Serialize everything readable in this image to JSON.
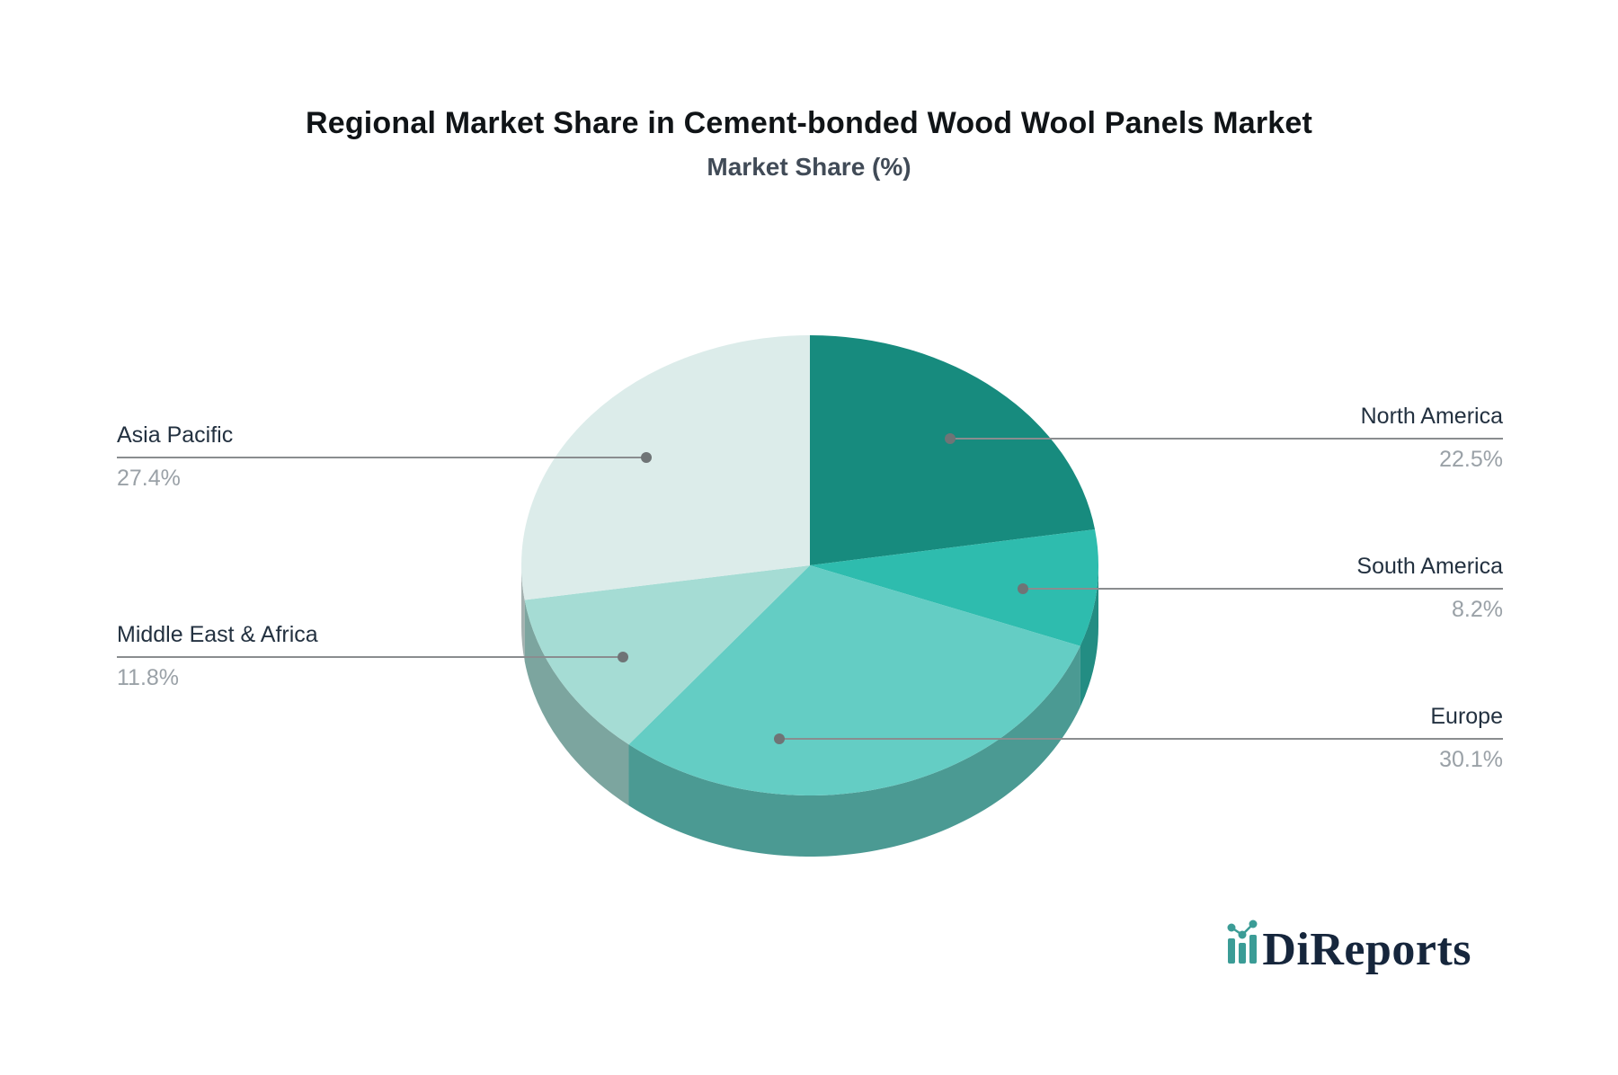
{
  "header": {
    "title": "Regional Market Share in Cement-bonded Wood Wool Panels Market",
    "subtitle": "Market Share (%)"
  },
  "chart_data": {
    "type": "pie",
    "title": "Regional Market Share in Cement-bonded Wood Wool Panels Market",
    "subtitle": "Market Share (%)",
    "unit": "%",
    "effect": "3d",
    "start_angle_deg": 0,
    "direction": "clockwise",
    "legend_position": "callout-labels",
    "slices": [
      {
        "label": "North America",
        "value": 22.5,
        "value_label": "22.5%",
        "color": "#178b7e",
        "label_side": "right"
      },
      {
        "label": "South America",
        "value": 8.2,
        "value_label": "8.2%",
        "color": "#2ebcae",
        "label_side": "right"
      },
      {
        "label": "Europe",
        "value": 30.1,
        "value_label": "30.1%",
        "color": "#64cdc4",
        "label_side": "right"
      },
      {
        "label": "Middle East & Africa",
        "value": 11.8,
        "value_label": "11.8%",
        "color": "#a5dcd4",
        "label_side": "left"
      },
      {
        "label": "Asia Pacific",
        "value": 27.4,
        "value_label": "27.4%",
        "color": "#dcecea",
        "label_side": "left"
      }
    ]
  },
  "branding": {
    "logo_text": "DiReports",
    "logo_color": "#16263c",
    "logo_icon_color": "#3b9c96"
  },
  "style": {
    "leader_line_color": "#8a8d8f",
    "leader_dot_color": "#6f7476",
    "label_name_color": "#233140",
    "label_value_color": "#9aa1a7"
  }
}
